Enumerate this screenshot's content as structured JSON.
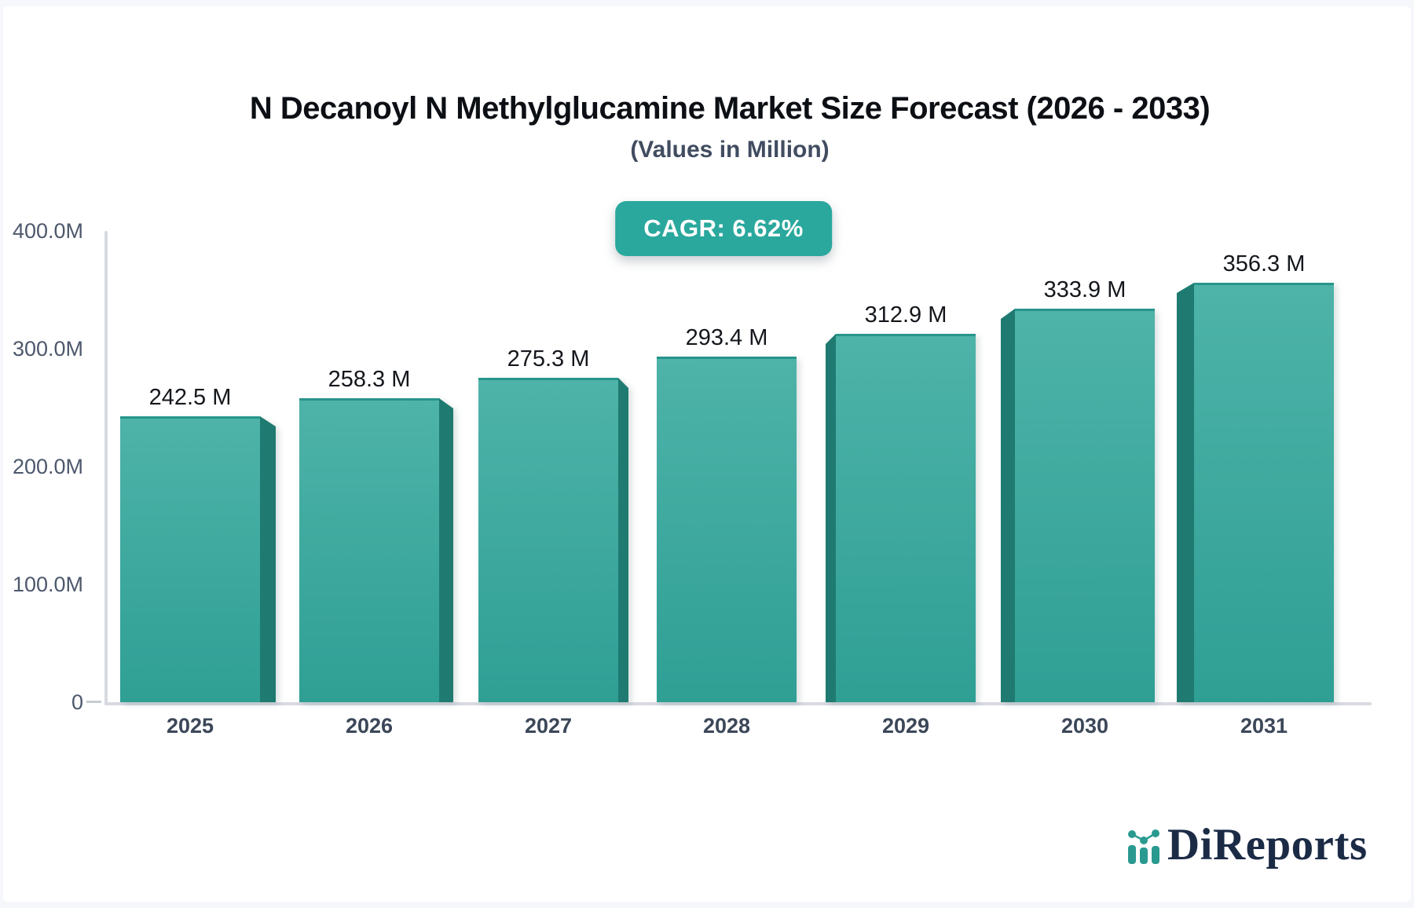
{
  "header": {
    "title": "N Decanoyl N Methylglucamine Market Size Forecast (2026 - 2033)",
    "subtitle": "(Values in Million)"
  },
  "badge": {
    "label": "CAGR: 6.62%",
    "background": "#2aa89d",
    "text_color": "#ffffff"
  },
  "chart_data": {
    "type": "bar",
    "title": "N Decanoyl N Methylglucamine Market Size Forecast (2026 - 2033)",
    "subtitle": "(Values in Million)",
    "unit": "Million",
    "categories": [
      "2025",
      "2026",
      "2027",
      "2028",
      "2029",
      "2030",
      "2031"
    ],
    "values": [
      242.5,
      258.3,
      275.3,
      293.4,
      312.9,
      333.9,
      356.3
    ],
    "value_labels": [
      "242.5 M",
      "258.3 M",
      "275.3 M",
      "293.4 M",
      "312.9 M",
      "333.9 M",
      "356.3 M"
    ],
    "ylim": [
      0,
      400
    ],
    "yticks": [
      {
        "value": 0,
        "label": "0"
      },
      {
        "value": 100,
        "label": "100.0M"
      },
      {
        "value": 200,
        "label": "200.0M"
      },
      {
        "value": 300,
        "label": "300.0M"
      },
      {
        "value": 400,
        "label": "400.0M"
      }
    ],
    "grid": false,
    "legend": null,
    "bar_style": "3d",
    "colors": {
      "bar_face_top": "#4eb3a9",
      "bar_face_bottom": "#2f9f94",
      "bar_side": "#1f7b71",
      "axis_line": "#d7dae0",
      "tick_label": "#4d586c",
      "category_label": "#3c4759",
      "value_label": "#14171c"
    }
  },
  "logo": {
    "text": "DiReports",
    "icon": "mini-bar-line-chart-icon",
    "text_color": "#1b2b46",
    "icon_color": "#2a9a90"
  }
}
